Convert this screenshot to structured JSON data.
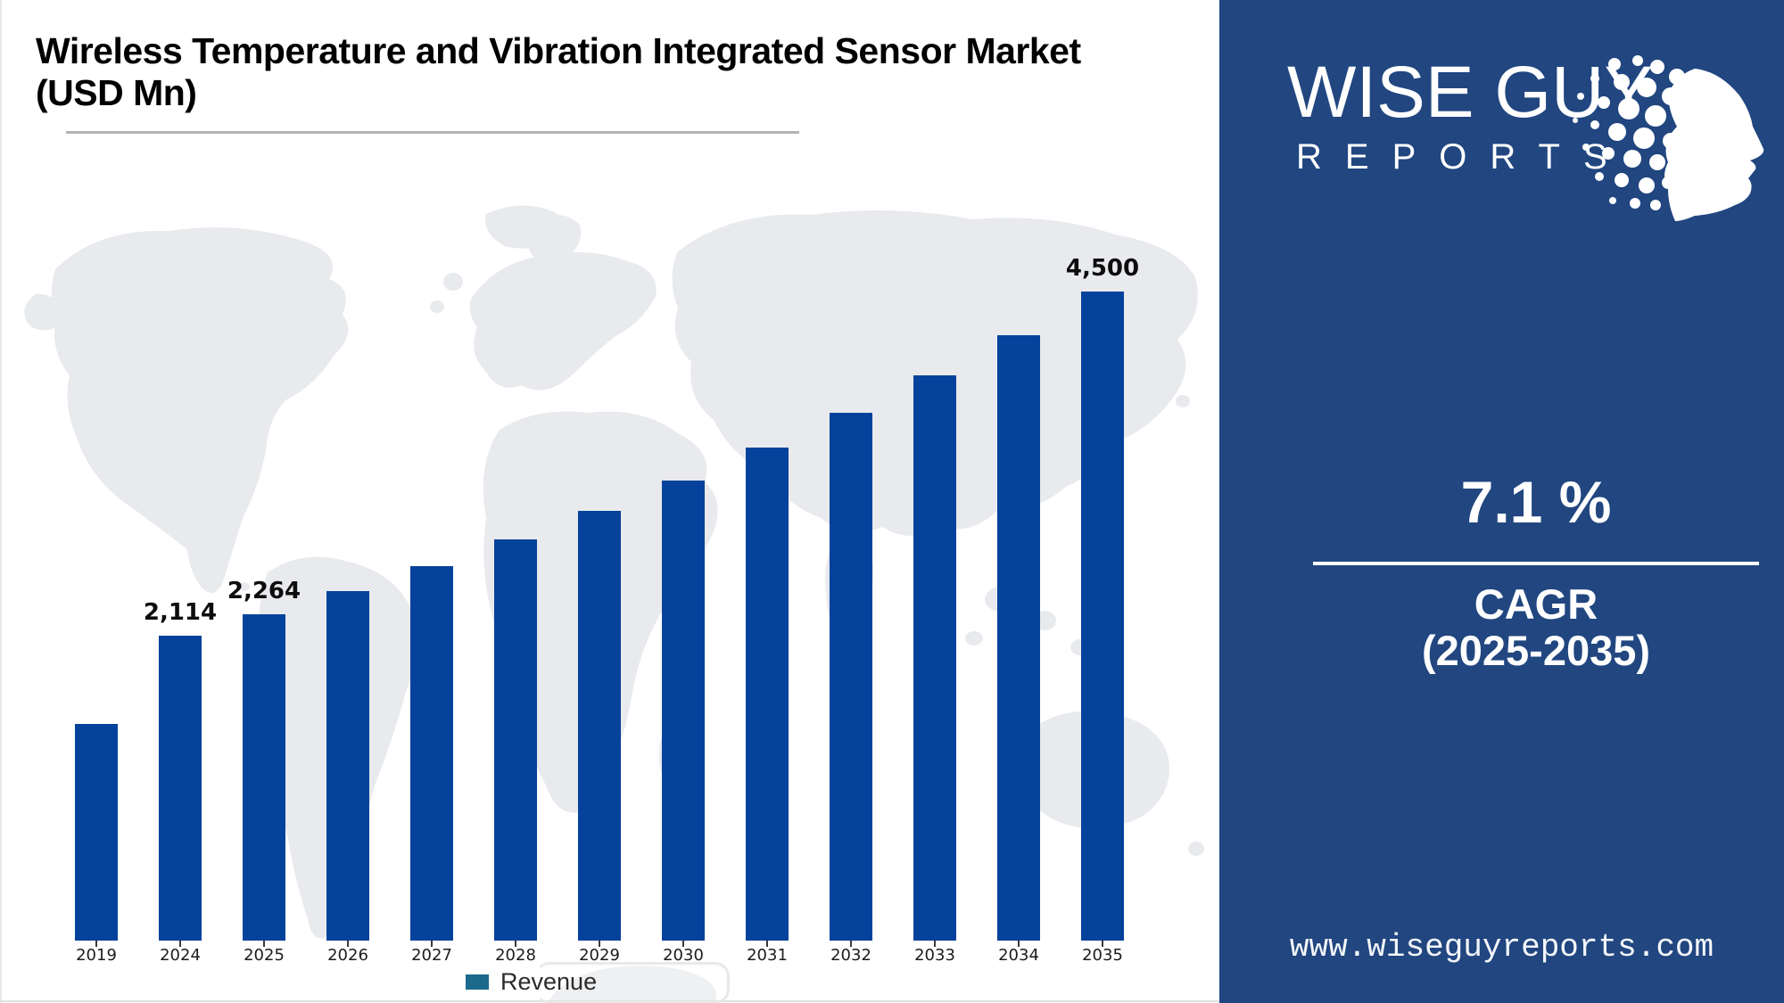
{
  "title": {
    "line1": "Wireless Temperature and Vibration Integrated Sensor Market",
    "line2": "(USD Mn)"
  },
  "chart_data": {
    "type": "bar",
    "title": "Wireless Temperature and Vibration Integrated Sensor Market (USD Mn)",
    "categories": [
      "2019",
      "2024",
      "2025",
      "2026",
      "2027",
      "2028",
      "2029",
      "2030",
      "2031",
      "2032",
      "2033",
      "2034",
      "2035"
    ],
    "series": [
      {
        "name": "Revenue",
        "values": [
          1500,
          2114,
          2264,
          2425,
          2597,
          2781,
          2978,
          3190,
          3416,
          3659,
          3919,
          4197,
          4500
        ]
      }
    ],
    "bar_value_labels": [
      "",
      "2,114",
      "2,264",
      "",
      "",
      "",
      "",
      "",
      "",
      "",
      "",
      "",
      "4,500"
    ],
    "ylim": [
      0,
      4800
    ],
    "gridlines": false,
    "legend": {
      "position": "bottom",
      "entries": [
        "Revenue"
      ]
    },
    "bar_color": "#05429b",
    "legend_swatch_color": "#1b6a8c"
  },
  "panel": {
    "background_color": "#214680",
    "logo": {
      "line1": "WISE GUY",
      "line2": "REPORTS"
    },
    "cagr_value": "7.1 %",
    "cagr_line1": "CAGR",
    "cagr_line2": "(2025-2035)",
    "website": "www.wiseguyreports.com"
  },
  "colors": {
    "title_underline": "#b3b3b3",
    "map_watermark": "#e8eaed",
    "axis_tick": "#3a3a3a"
  }
}
